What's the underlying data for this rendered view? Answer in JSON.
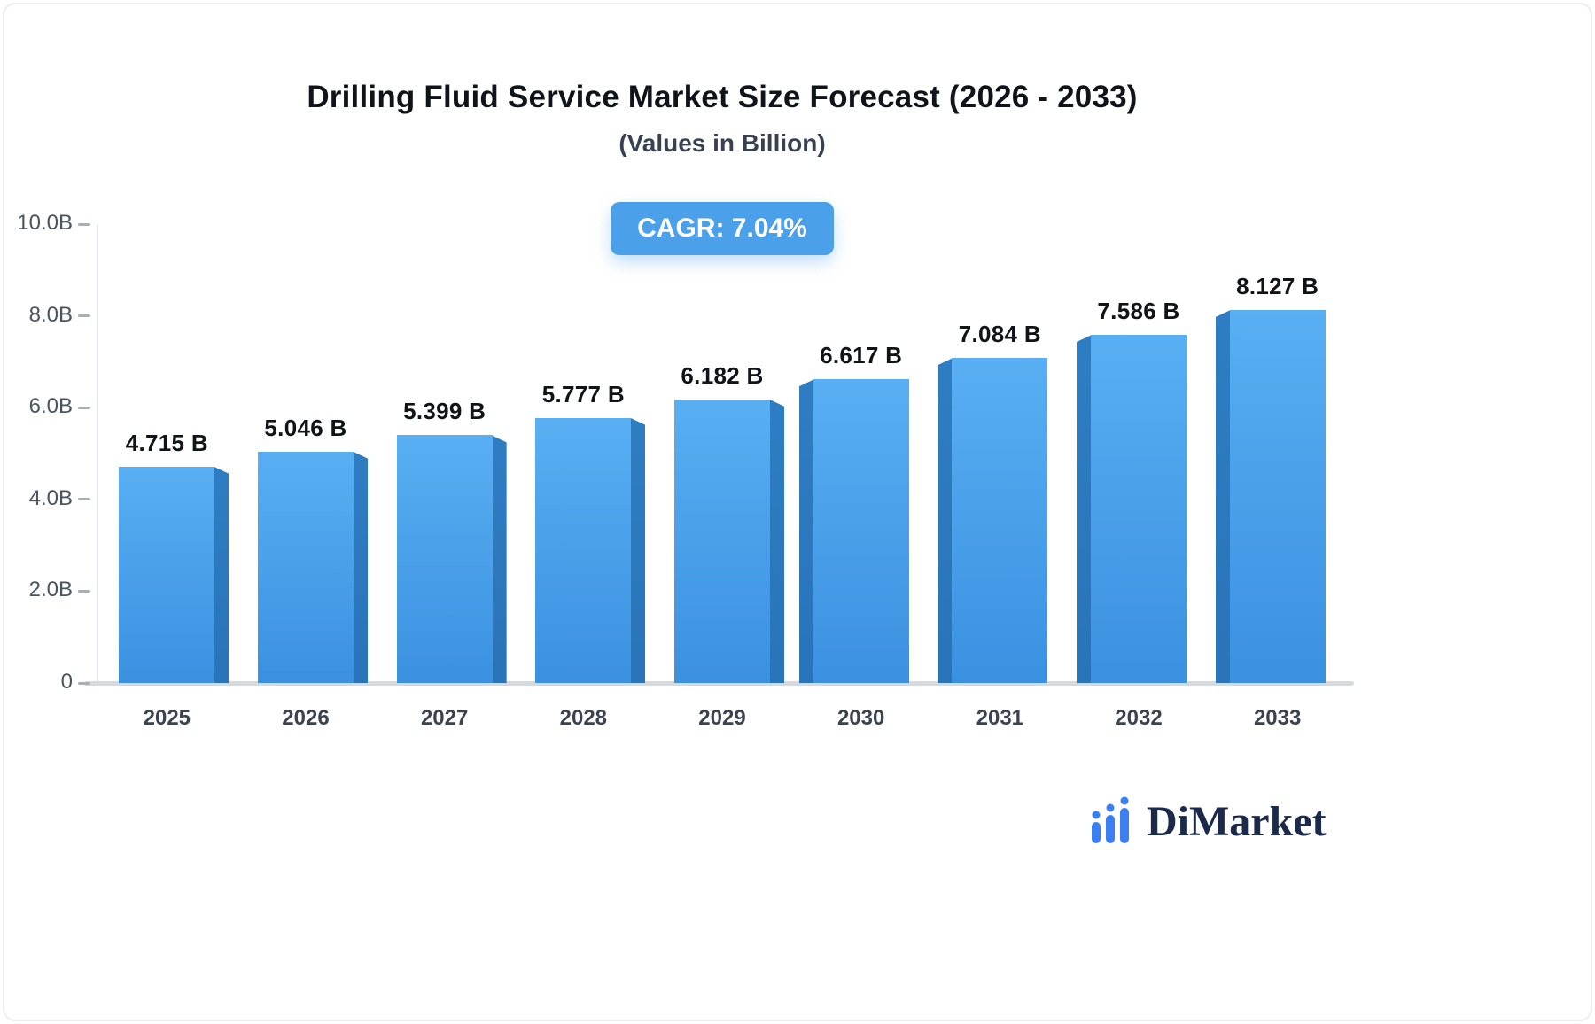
{
  "header": {
    "title": "Drilling Fluid Service Market Size Forecast (2026 - 2033)",
    "subtitle": "(Values in Billion)",
    "cagr_label": "CAGR: 7.04%"
  },
  "chart_data": {
    "type": "bar",
    "title": "Drilling Fluid Service Market Size Forecast (2026 - 2033)",
    "subtitle": "(Values in Billion)",
    "cagr_label": "CAGR: 7.04%",
    "categories": [
      "2025",
      "2026",
      "2027",
      "2028",
      "2029",
      "2030",
      "2031",
      "2032",
      "2033"
    ],
    "values": [
      4.715,
      5.046,
      5.399,
      5.777,
      6.182,
      6.617,
      7.084,
      7.586,
      8.127
    ],
    "value_labels": [
      "4.715 B",
      "5.046 B",
      "5.399 B",
      "5.777 B",
      "6.182 B",
      "6.617 B",
      "7.084 B",
      "7.586 B",
      "8.127 B"
    ],
    "unit": "B",
    "xlabel": "",
    "ylabel": "",
    "ylim": [
      0,
      10
    ],
    "yticks": [
      {
        "value": 0,
        "label": "0"
      },
      {
        "value": 2,
        "label": "2.0B"
      },
      {
        "value": 4,
        "label": "4.0B"
      },
      {
        "value": 6,
        "label": "6.0B"
      },
      {
        "value": 8,
        "label": "8.0B"
      },
      {
        "value": 10,
        "label": "10.0B"
      }
    ],
    "grid": false,
    "legend": "none",
    "bar_style": "3d-extruded"
  },
  "colors": {
    "bar_front_top": "#59AFF2",
    "bar_front_bottom": "#3A91E0",
    "bar_side": "#2E7DC2",
    "accent": "#4BA1E9",
    "axis_text": "#4A5560",
    "x_label_text": "#3B4350",
    "value_label_text": "#101418",
    "baseline": "#D6DADF",
    "tick_mark": "#A8AEB6",
    "logo_blue": "#3B7FF0",
    "logo_navy": "#1B2A4A"
  },
  "branding": {
    "name": "DiMarket",
    "icon": "bar-chart-logo-icon"
  }
}
